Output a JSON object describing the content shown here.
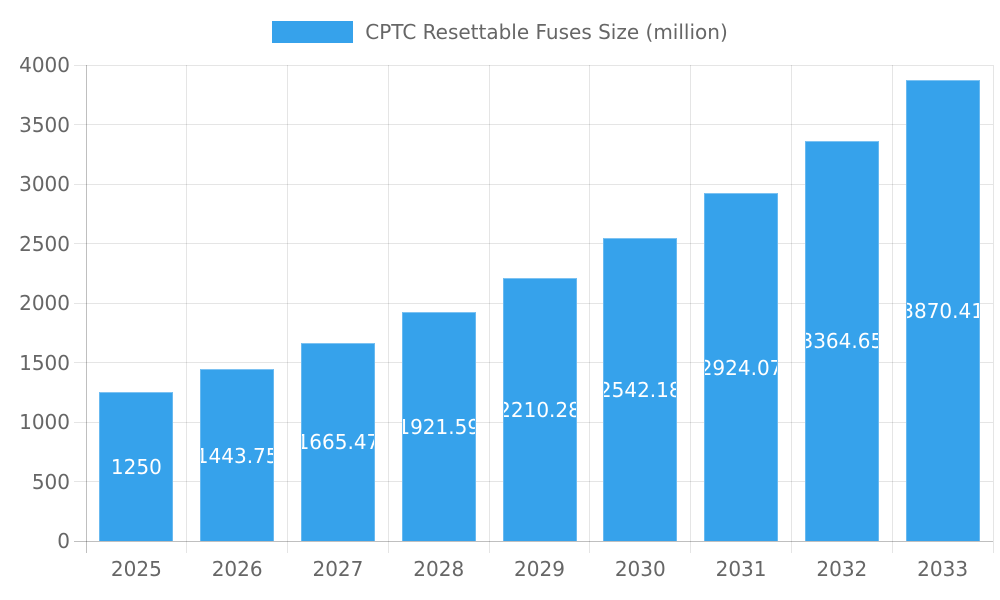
{
  "legend": {
    "label": "CPTC Resettable Fuses Size (million)"
  },
  "chart_data": {
    "type": "bar",
    "title": "",
    "xlabel": "",
    "ylabel": "",
    "legend_position": "top",
    "grid": true,
    "categories": [
      "2025",
      "2026",
      "2027",
      "2028",
      "2029",
      "2030",
      "2031",
      "2032",
      "2033"
    ],
    "series": [
      {
        "name": "CPTC Resettable Fuses Size (million)",
        "values": [
          1250,
          1443.75,
          1665.47,
          1921.59,
          2210.28,
          2542.18,
          2924.07,
          3364.65,
          3870.41
        ]
      }
    ],
    "data_labels": [
      "1250",
      "1443.75",
      "1665.47",
      "1921.59",
      "2210.28",
      "2542.18",
      "2924.07",
      "3364.65",
      "3870.41"
    ],
    "ylim": [
      0,
      4000
    ],
    "ytick_step": 500,
    "ytick_labels": [
      "0",
      "500",
      "1000",
      "1500",
      "2000",
      "2500",
      "3000",
      "3500",
      "4000"
    ],
    "colors": {
      "bar": "#36A2EB",
      "bar_label": "#ffffff",
      "tick_label": "#666666",
      "grid_light": "rgba(0,0,0,0.10)",
      "grid_dark": "rgba(0,0,0,0.25)"
    }
  }
}
